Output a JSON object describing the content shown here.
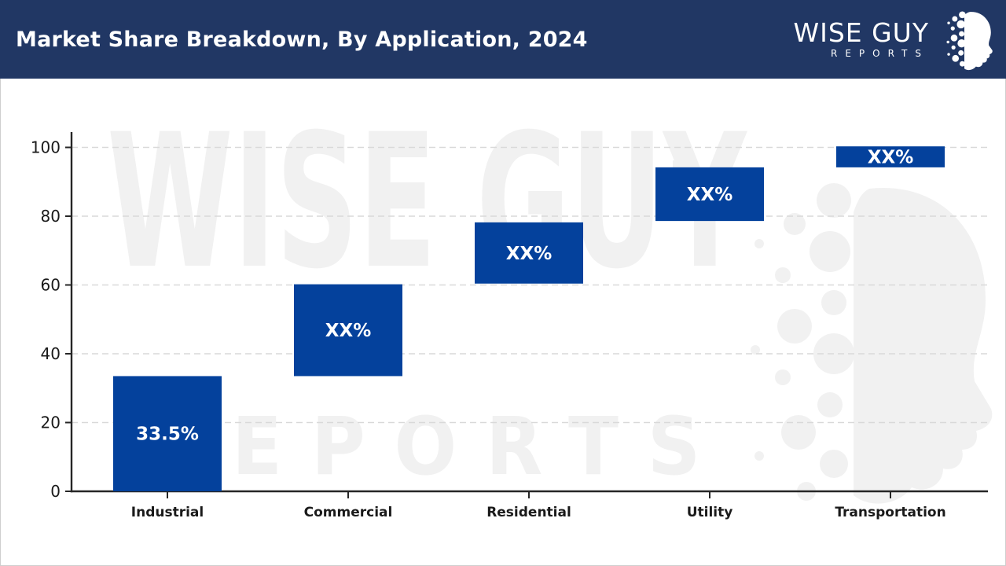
{
  "header": {
    "title": "Market Share Breakdown, By Application, 2024",
    "logo": {
      "name": "WISE GUY",
      "tagline": "REPORTS"
    }
  },
  "watermark": {
    "name": "WISE GUY",
    "tagline": "REPORTS"
  },
  "chart_data": {
    "type": "bar",
    "subtype": "floating-waterfall",
    "title": "Market Share Breakdown, By Application, 2024",
    "categories": [
      "Industrial",
      "Commercial",
      "Residential",
      "Utility",
      "Transportation"
    ],
    "series": [
      {
        "name": "Market share (%)",
        "segments": [
          {
            "category": "Industrial",
            "start": 0,
            "end": 33.5,
            "label": "33.5%"
          },
          {
            "category": "Commercial",
            "start": 33.5,
            "end": 60.2,
            "label": "XX%"
          },
          {
            "category": "Residential",
            "start": 60.4,
            "end": 78.2,
            "label": "XX%"
          },
          {
            "category": "Utility",
            "start": 78.6,
            "end": 94.2,
            "label": "XX%"
          },
          {
            "category": "Transportation",
            "start": 94.2,
            "end": 100.3,
            "label": "XX%"
          }
        ]
      }
    ],
    "xlabel": "",
    "ylabel": "",
    "yticks": [
      0,
      20,
      40,
      60,
      80,
      100
    ],
    "ylim": [
      0,
      104
    ],
    "legend": "none",
    "grid": "horizontal-dashed",
    "colors": {
      "bar": "#04419c",
      "bar_label": "#ffffff",
      "axis": "#262626",
      "grid": "#d9d9d9",
      "tick_label": "#1a1a1a",
      "header_bg": "#213764",
      "header_text": "#ffffff",
      "watermark": "#f1f1f1"
    }
  }
}
